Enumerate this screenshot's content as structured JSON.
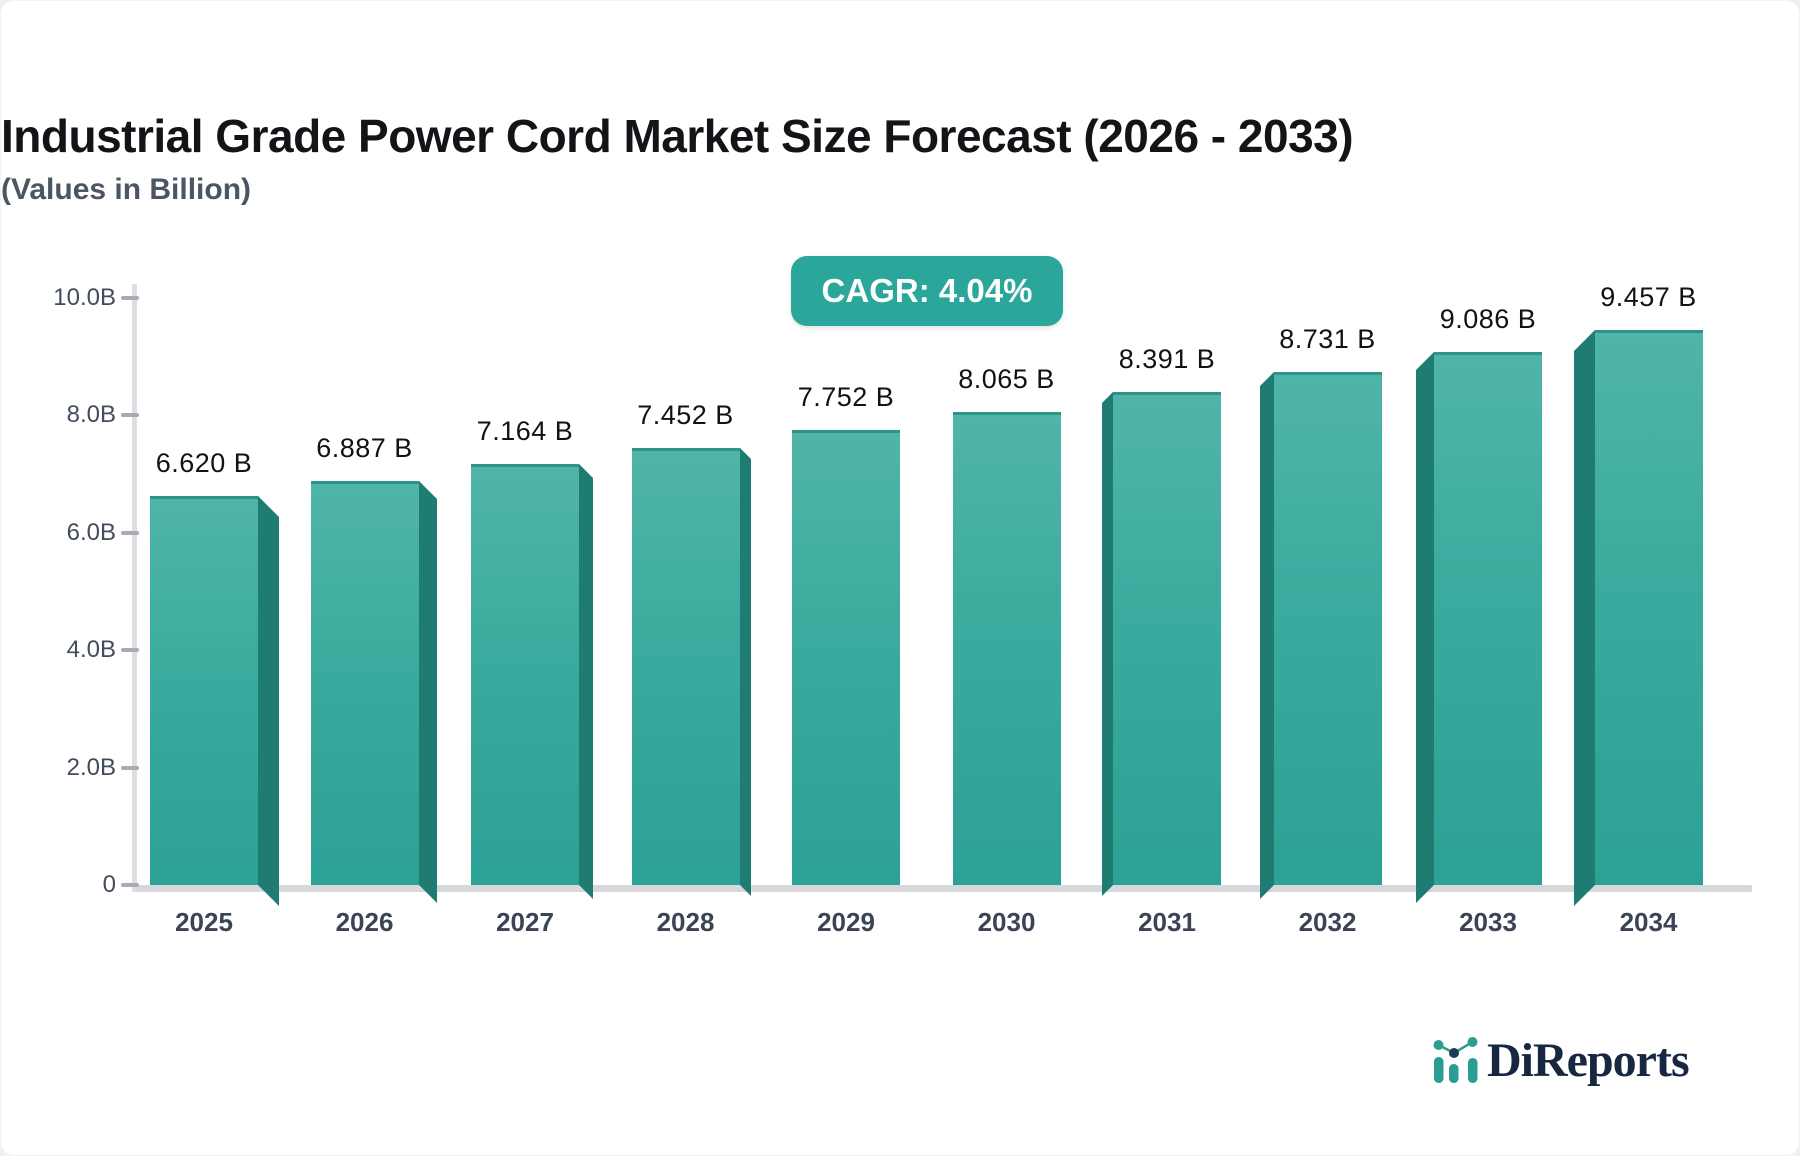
{
  "header": {
    "title": "Industrial Grade Power Cord Market Size Forecast (2026 - 2033)",
    "subtitle": "(Values in Billion)"
  },
  "badge": {
    "label": "CAGR: 4.04%"
  },
  "chart_data": {
    "type": "bar",
    "title": "Industrial Grade Power Cord Market Size Forecast (2026 - 2033)",
    "subtitle": "(Values in Billion)",
    "unit": "Billion",
    "cagr": "4.04%",
    "categories": [
      "2025",
      "2026",
      "2027",
      "2028",
      "2029",
      "2030",
      "2031",
      "2032",
      "2033",
      "2034"
    ],
    "values": [
      6.62,
      6.887,
      7.164,
      7.452,
      7.752,
      8.065,
      8.391,
      8.731,
      9.086,
      9.457
    ],
    "bar_labels": [
      "6.620 B",
      "6.887 B",
      "7.164 B",
      "7.452 B",
      "7.752 B",
      "8.065 B",
      "8.391 B",
      "8.731 B",
      "9.086 B",
      "9.457 B"
    ],
    "ylim": [
      0,
      10
    ],
    "yticks": [
      {
        "value": 0,
        "label": "0"
      },
      {
        "value": 2,
        "label": "2.0B"
      },
      {
        "value": 4,
        "label": "4.0B"
      },
      {
        "value": 6,
        "label": "6.0B"
      },
      {
        "value": 8,
        "label": "8.0B"
      },
      {
        "value": 10,
        "label": "10.0B"
      }
    ],
    "grid": false,
    "legend": false,
    "colors": {
      "bar_face_top": "#50b5a8",
      "bar_face_bottom": "#2ca195",
      "bar_side": "#1e7c72",
      "bar_top_edge": "#2f9488",
      "badge_bg": "#2aa79a",
      "badge_text": "#ffffff",
      "axis_text": "#424c5c",
      "title_text": "#121418"
    }
  },
  "footer": {
    "logo_text": "DiReports"
  }
}
